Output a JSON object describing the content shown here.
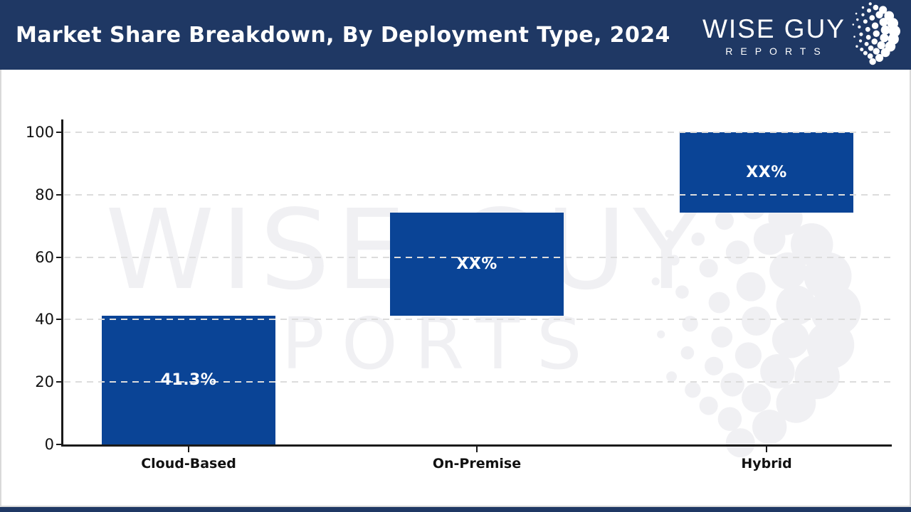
{
  "header": {
    "title": "Market Share Breakdown, By Deployment Type, 2024",
    "background_color": "#1f3864",
    "logo": {
      "wordmark": "WISE GUY",
      "subtitle": "REPORTS",
      "icon": "dot-head-profile-icon"
    }
  },
  "watermark": {
    "wordmark": "WISE GUY",
    "subtitle": "REPORTS"
  },
  "chart_data": {
    "type": "bar",
    "subtype": "waterfall-style floating bars",
    "title": "Market Share Breakdown, By Deployment Type, 2024",
    "categories": [
      "Cloud-Based",
      "On-Premise",
      "Hybrid"
    ],
    "segments": [
      {
        "category": "Cloud-Based",
        "from": 0,
        "to": 41.3,
        "label": "41.3%"
      },
      {
        "category": "On-Premise",
        "from": 41.3,
        "to": 74.3,
        "label": "XX%"
      },
      {
        "category": "Hybrid",
        "from": 74.3,
        "to": 100,
        "label": "XX%"
      }
    ],
    "xlabel": "",
    "ylabel": "",
    "ylim": [
      0,
      100
    ],
    "yticks": [
      0,
      20,
      40,
      60,
      80,
      100
    ],
    "grid": "horizontal dashed gridlines drawn over bars",
    "legend": "none",
    "bar_color": "#0a4496",
    "bar_label_color": "#ffffff",
    "axis_color": "#1a1a1a",
    "gridline_color": "#dcdcdc"
  },
  "footer": {
    "accent_bar_color": "#1f3864"
  }
}
